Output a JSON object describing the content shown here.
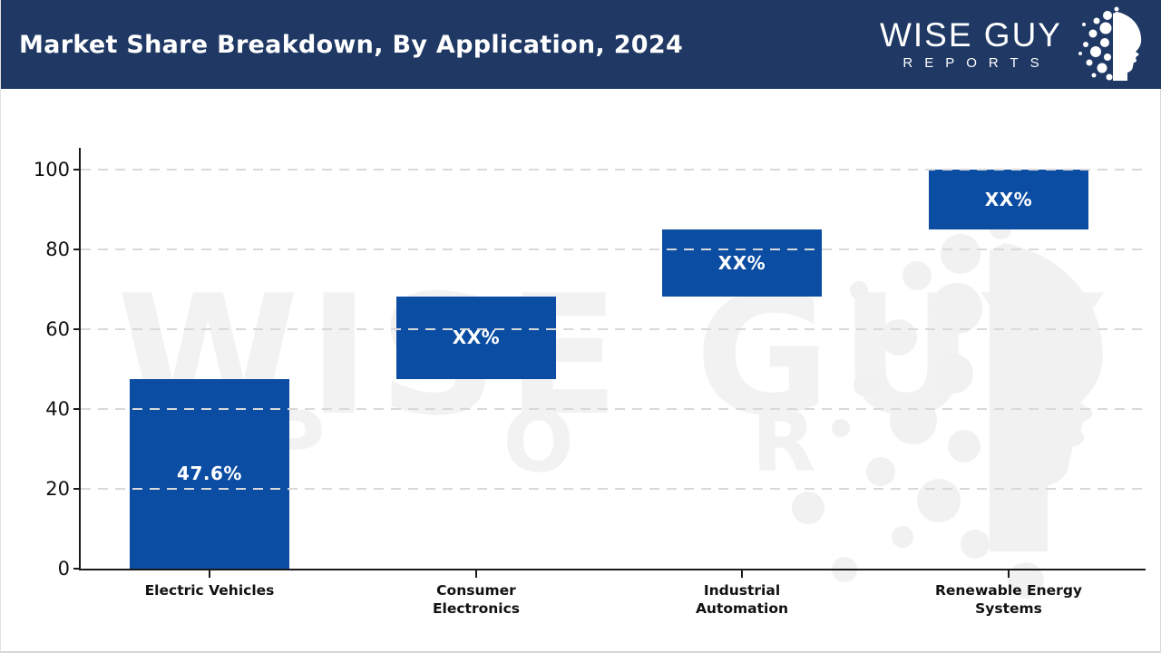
{
  "header": {
    "title": "Market Share Breakdown, By Application, 2024",
    "logo": {
      "line1": "WISE GUY",
      "line2": "REPORTS"
    }
  },
  "watermark": {
    "line1": "WISE GUY",
    "line2": "P O R T S"
  },
  "colors": {
    "header_bg": "#1f3864",
    "bar": "#0b4da2",
    "bar_label": "#ffffff",
    "axis": "#1a1a1a",
    "grid": "#d9d9d9",
    "watermark": "#f2f2f2"
  },
  "chart_data": {
    "type": "bar",
    "subtype": "waterfall-floating-segments",
    "title": "Market Share Breakdown, By Application, 2024",
    "xlabel": "",
    "ylabel": "",
    "ylim": [
      0,
      100
    ],
    "y_ticks": [
      0,
      20,
      40,
      60,
      80,
      100
    ],
    "grid": "horizontal-dashed",
    "legend": "none",
    "categories": [
      "Electric Vehicles",
      "Consumer Electronics",
      "Industrial Automation",
      "Renewable Energy Systems"
    ],
    "category_label_lines": [
      [
        "Electric Vehicles"
      ],
      [
        "Consumer",
        "Electronics"
      ],
      [
        "Industrial",
        "Automation"
      ],
      [
        "Renewable Energy",
        "Systems"
      ]
    ],
    "segments": [
      {
        "category": "Electric Vehicles",
        "start": 0,
        "end": 47.6,
        "label": "47.6%"
      },
      {
        "category": "Consumer Electronics",
        "start": 47.6,
        "end": 68.2,
        "label": "XX%"
      },
      {
        "category": "Industrial Automation",
        "start": 68.2,
        "end": 85.0,
        "label": "XX%"
      },
      {
        "category": "Renewable Energy Systems",
        "start": 85.0,
        "end": 100,
        "label": "XX%"
      }
    ]
  }
}
